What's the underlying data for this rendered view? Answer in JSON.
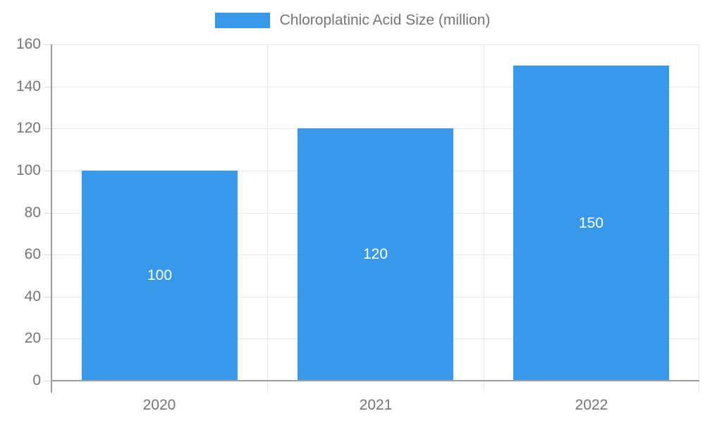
{
  "chart_data": {
    "type": "bar",
    "title": "Chloroplatinic Acid Size (million)",
    "legend": {
      "label": "Chloroplatinic Acid Size (million)",
      "position": "top"
    },
    "categories": [
      "2020",
      "2021",
      "2022"
    ],
    "values": [
      100,
      120,
      150
    ],
    "bar_value_labels": [
      "100",
      "120",
      "150"
    ],
    "xlabel": "",
    "ylabel": "",
    "ylim": [
      0,
      160
    ],
    "ytick_step": 20,
    "yticks": [
      160,
      140,
      120,
      100,
      80,
      60,
      40,
      20,
      0
    ],
    "grid": true,
    "bar_label_position": "center"
  },
  "colors": {
    "bar": "#3899EC",
    "axis_text": "#757575",
    "legend_text": "#757575",
    "bar_label_text": "#FFFFFF",
    "gridline": "#E6E6E6",
    "tick_mark": "#DBDBDB",
    "axis_line": "#9E9E9E",
    "background": "#FFFFFF"
  }
}
